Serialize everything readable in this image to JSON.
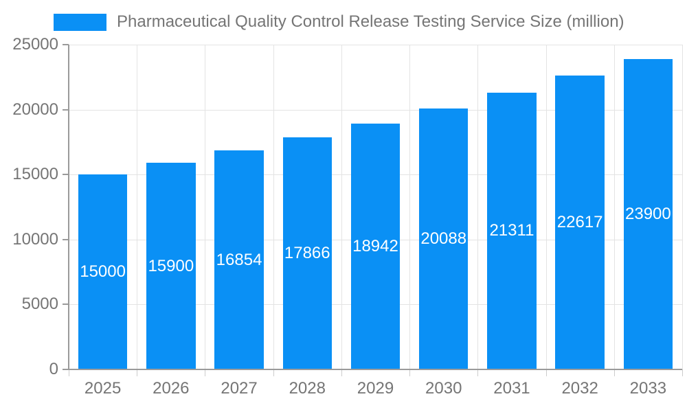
{
  "chart_data": {
    "type": "bar",
    "title": "Pharmaceutical Quality Control Release Testing Service Size (million)",
    "categories": [
      "2025",
      "2026",
      "2027",
      "2028",
      "2029",
      "2030",
      "2031",
      "2032",
      "2033"
    ],
    "values": [
      15000,
      15900,
      16854,
      17866,
      18942,
      20088,
      21311,
      22617,
      23900
    ],
    "xlabel": "",
    "ylabel": "",
    "ylim": [
      0,
      25000
    ],
    "yticks": [
      0,
      5000,
      10000,
      15000,
      20000,
      25000
    ],
    "grid": true,
    "legend_position": "top-left",
    "value_labels": "inside-center",
    "colors": {
      "bar": "#0a90f5",
      "grid": "#e3e3e3",
      "axis": "#9a9a9a",
      "tick": "#cccccc",
      "text": "#757575",
      "value_label": "#ffffff",
      "background": "#ffffff"
    }
  }
}
